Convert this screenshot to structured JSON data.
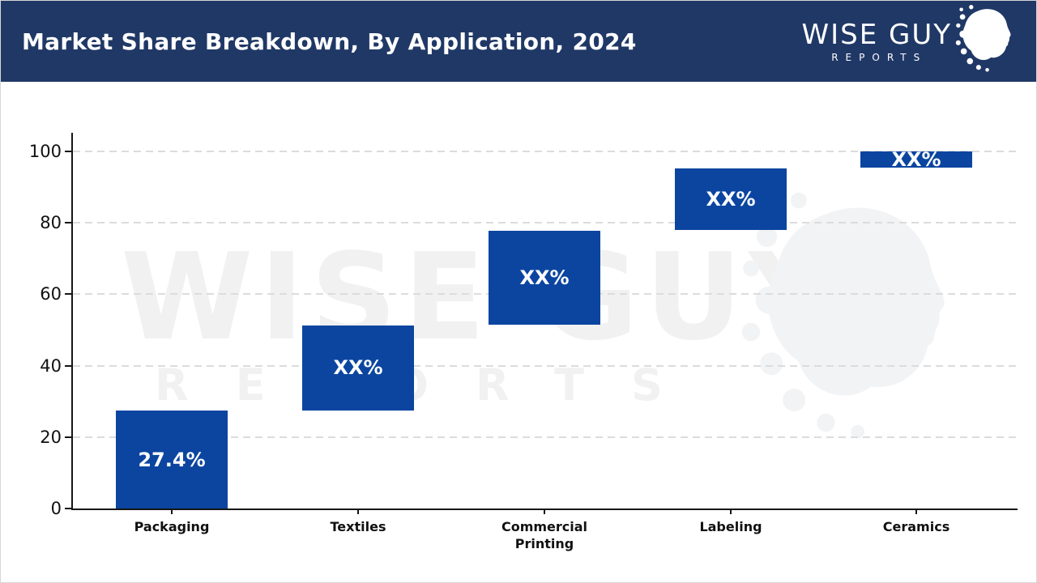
{
  "header": {
    "title": "Market Share Breakdown, By Application, 2024",
    "brand": {
      "line1": "WISE GUY",
      "line2": "REPORTS"
    },
    "bg_color": "#203866"
  },
  "watermark": {
    "line1": "WISE GUY",
    "line2": "REPORTS"
  },
  "chart_data": {
    "type": "bar",
    "subtype": "waterfall-floating-segments",
    "title": "Market Share Breakdown, By Application, 2024",
    "categories": [
      "Packaging",
      "Textiles",
      "Commercial Printing",
      "Labeling",
      "Ceramics"
    ],
    "segments": [
      {
        "category": "Packaging",
        "start": 0,
        "end": 27.4,
        "label": "27.4%"
      },
      {
        "category": "Textiles",
        "start": 27.4,
        "end": 51.3,
        "label": "XX%"
      },
      {
        "category": "Commercial Printing",
        "start": 51.4,
        "end": 77.7,
        "label": "XX%"
      },
      {
        "category": "Labeling",
        "start": 78.0,
        "end": 95.2,
        "label": "XX%"
      },
      {
        "category": "Ceramics",
        "start": 95.5,
        "end": 100.0,
        "label": "XX%"
      }
    ],
    "y_ticks": [
      0,
      20,
      40,
      60,
      80,
      100
    ],
    "ylim": [
      0,
      105
    ],
    "xlabel": "",
    "ylabel": "",
    "bar_color": "#0b45a0",
    "grid": "horizontal dashed",
    "legend": "none"
  }
}
